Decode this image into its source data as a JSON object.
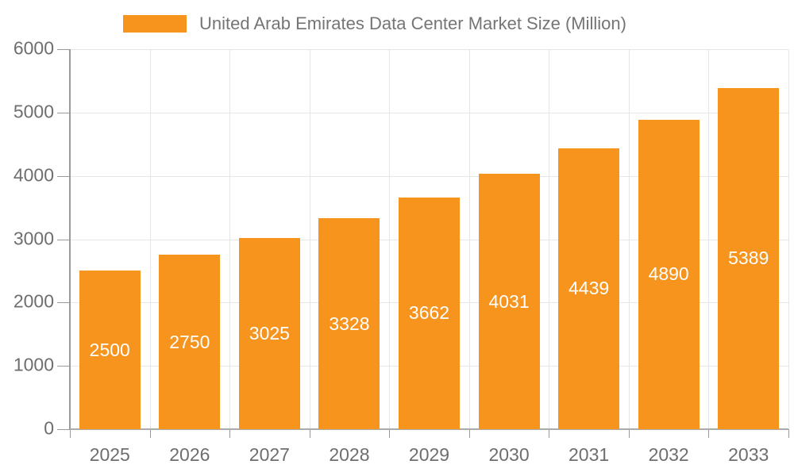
{
  "legend": {
    "label": "United Arab Emirates Data Center Market Size (Million)",
    "swatch_color": "#f7941e"
  },
  "chart_data": {
    "type": "bar",
    "title": "United Arab Emirates Data Center Market Size (Million)",
    "categories": [
      "2025",
      "2026",
      "2027",
      "2028",
      "2029",
      "2030",
      "2031",
      "2032",
      "2033"
    ],
    "values": [
      2500,
      2750,
      3025,
      3328,
      3662,
      4031,
      4439,
      4890,
      5389
    ],
    "xlabel": "",
    "ylabel": "",
    "ylim": [
      0,
      6000
    ],
    "yticks": [
      0,
      1000,
      2000,
      3000,
      4000,
      5000,
      6000
    ],
    "grid": true,
    "legend_position": "top",
    "bar_color": "#f7941e",
    "bar_label_color": "#ffffff",
    "axis_text_color": "#6e6e6e",
    "grid_color": "#e6e6e6",
    "axis_line_color": "#9a9a9a"
  }
}
